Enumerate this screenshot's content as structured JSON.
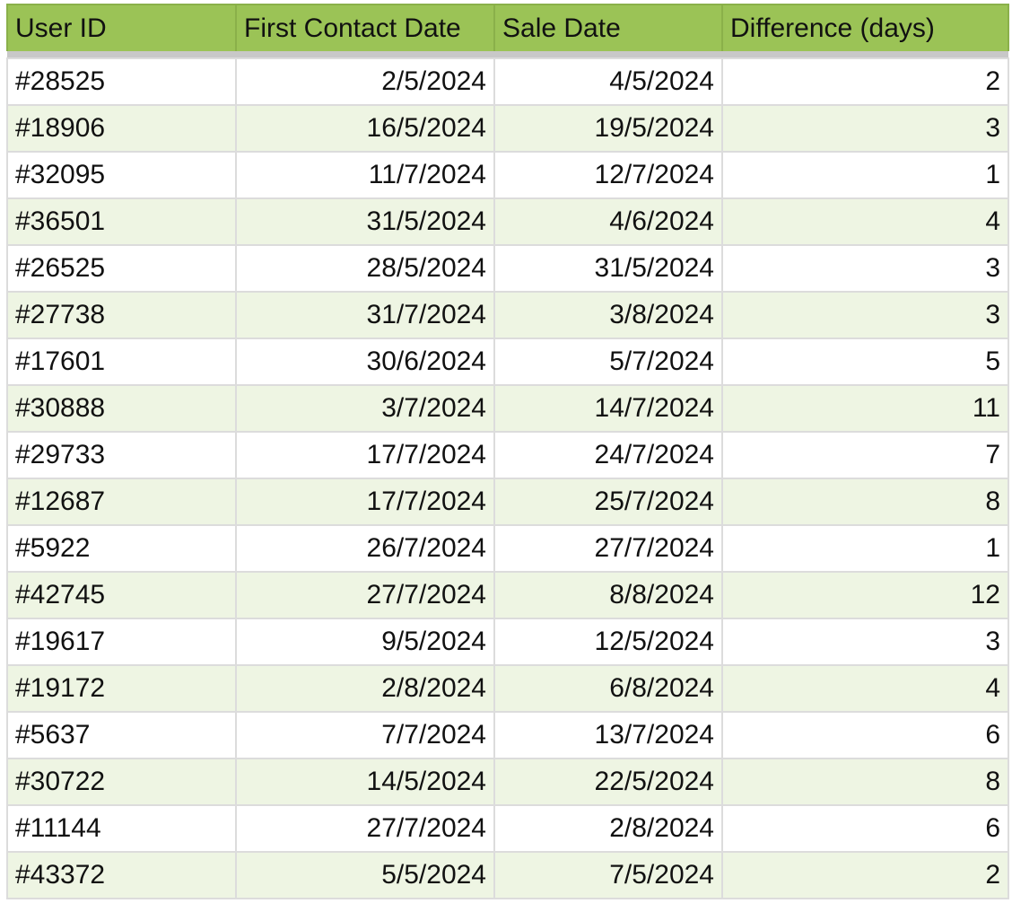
{
  "table": {
    "columns": [
      "User ID",
      "First Contact Date",
      "Sale Date",
      "Difference (days)"
    ],
    "rows": [
      [
        "#28525",
        "2/5/2024",
        "4/5/2024",
        "2"
      ],
      [
        "#18906",
        "16/5/2024",
        "19/5/2024",
        "3"
      ],
      [
        "#32095",
        "11/7/2024",
        "12/7/2024",
        "1"
      ],
      [
        "#36501",
        "31/5/2024",
        "4/6/2024",
        "4"
      ],
      [
        "#26525",
        "28/5/2024",
        "31/5/2024",
        "3"
      ],
      [
        "#27738",
        "31/7/2024",
        "3/8/2024",
        "3"
      ],
      [
        "#17601",
        "30/6/2024",
        "5/7/2024",
        "5"
      ],
      [
        "#30888",
        "3/7/2024",
        "14/7/2024",
        "11"
      ],
      [
        "#29733",
        "17/7/2024",
        "24/7/2024",
        "7"
      ],
      [
        "#12687",
        "17/7/2024",
        "25/7/2024",
        "8"
      ],
      [
        "#5922",
        "26/7/2024",
        "27/7/2024",
        "1"
      ],
      [
        "#42745",
        "27/7/2024",
        "8/8/2024",
        "12"
      ],
      [
        "#19617",
        "9/5/2024",
        "12/5/2024",
        "3"
      ],
      [
        "#19172",
        "2/8/2024",
        "6/8/2024",
        "4"
      ],
      [
        "#5637",
        "7/7/2024",
        "13/7/2024",
        "6"
      ],
      [
        "#30722",
        "14/5/2024",
        "22/5/2024",
        "8"
      ],
      [
        "#11144",
        "27/7/2024",
        "2/8/2024",
        "6"
      ],
      [
        "#43372",
        "5/5/2024",
        "7/5/2024",
        "2"
      ]
    ]
  },
  "colors": {
    "header": "#9bc356",
    "alt_row": "#eef5e3",
    "separator": "#c8c8c8"
  }
}
